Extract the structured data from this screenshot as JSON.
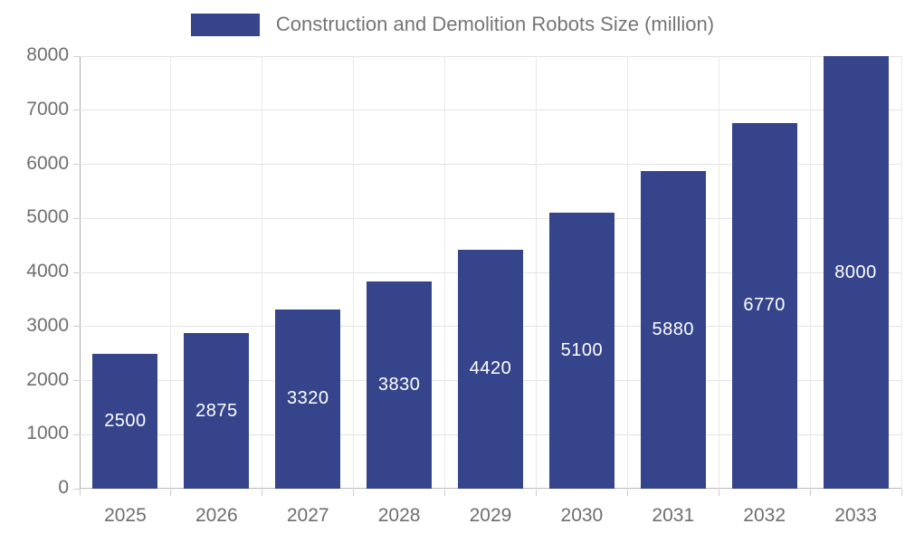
{
  "legend": {
    "label": "Construction and Demolition Robots Size (million)"
  },
  "colors": {
    "bar": "#36458B",
    "value_label": "#ffffff",
    "axis_text": "#6e6e6e",
    "legend_text": "#757575",
    "gridline": "#e3e3e3"
  },
  "chart_data": {
    "type": "bar",
    "title": "Construction and Demolition Robots Size (million)",
    "categories": [
      "2025",
      "2026",
      "2027",
      "2028",
      "2029",
      "2030",
      "2031",
      "2032",
      "2033"
    ],
    "values": [
      2500,
      2875,
      3320,
      3830,
      4420,
      5100,
      5880,
      6770,
      8000
    ],
    "value_labels": [
      "2500",
      "2875",
      "3320",
      "3830",
      "4420",
      "5100",
      "5880",
      "6770",
      "8000"
    ],
    "xlabel": "",
    "ylabel": "",
    "ylim": [
      0,
      8000
    ],
    "y_tick_step": 1000,
    "y_tick_labels": [
      "0",
      "1000",
      "2000",
      "3000",
      "4000",
      "5000",
      "6000",
      "7000",
      "8000"
    ],
    "grid": true,
    "legend_position": "top-center",
    "value_label_position": "center-inside"
  }
}
